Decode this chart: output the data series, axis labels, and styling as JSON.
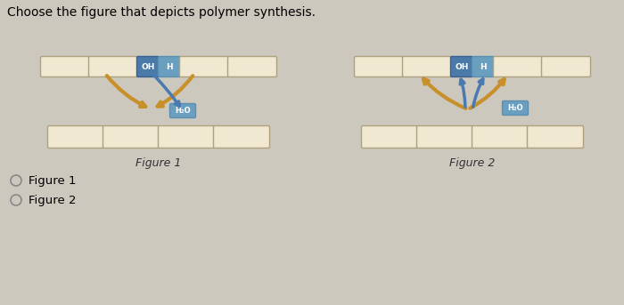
{
  "title": "Choose the figure that depicts polymer synthesis.",
  "title_fontsize": 10,
  "bg_color": "#ccc8be",
  "box_face": "#f0e8d0",
  "box_edge": "#b0a080",
  "oh_face": "#4a7aaa",
  "oh_edge": "#3a6090",
  "h_face": "#6a9fc0",
  "h_edge": "#5a8fb0",
  "h2o_face": "#6a9fc0",
  "h2o_edge": "#5a8fb0",
  "arrow_gold": "#c8902a",
  "arrow_blue": "#4a7ab0",
  "fig1_label": "Figure 1",
  "fig2_label": "Figure 2",
  "radio_labels": [
    "Figure 1",
    "Figure 2"
  ]
}
